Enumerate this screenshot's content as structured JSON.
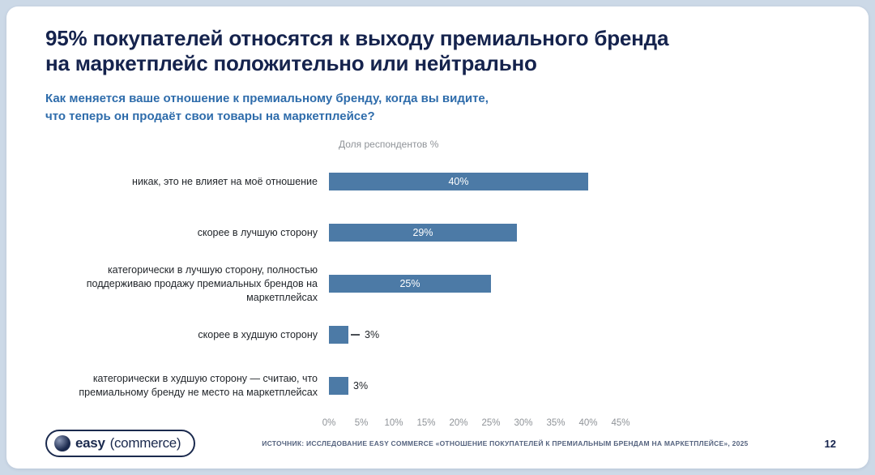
{
  "slide": {
    "title": "95% покупателей относятся к выходу премиального бренда\nна маркетплейс положительно или нейтрально",
    "question": "Как меняется ваше отношение к премиальному бренду, когда вы видите,\nчто теперь он продаёт свои товары на маркетплейсе?",
    "source": "ИСТОЧНИК: ИССЛЕДОВАНИЕ EASY COMMERCE «ОТНОШЕНИЕ ПОКУПАТЕЛЕЙ К ПРЕМИАЛЬНЫМ БРЕНДАМ НА МАРКЕТПЛЕЙСЕ», 2025",
    "page_number": "12",
    "logo": {
      "icon": "easy-commerce-moon-icon",
      "word1": "easy",
      "word2": "(commerce)"
    }
  },
  "colors": {
    "background": "#ccd9e7",
    "card": "#ffffff",
    "title": "#15234d",
    "question": "#2e6cab",
    "bar": "#4c7aa6",
    "axis_text": "#8f9398"
  },
  "chart_data": {
    "type": "bar",
    "orientation": "horizontal",
    "axis_title": "Доля респондентов %",
    "categories": [
      "никак, это не влияет на моё отношение",
      "скорее в лучшую сторону",
      "категорически в лучшую сторону, полностью\nподдерживаю продажу премиальных брендов на\nмаркетплейсах",
      "скорее в худшую сторону",
      "категорически в худшую сторону — считаю, что\nпремиальному бренду не место на маркетплейсах"
    ],
    "values": [
      40,
      29,
      25,
      3,
      3
    ],
    "value_labels": [
      "40%",
      "29%",
      "25%",
      "3%",
      "3%"
    ],
    "label_inside": [
      true,
      true,
      true,
      false,
      false
    ],
    "outside_connector": [
      false,
      false,
      false,
      true,
      false
    ],
    "x_ticks": [
      "0%",
      "5%",
      "10%",
      "15%",
      "20%",
      "25%",
      "30%",
      "35%",
      "40%",
      "45%"
    ],
    "xlim": [
      0,
      45
    ],
    "grid": false,
    "legend": false,
    "bar_color": "#4c7aa6"
  }
}
